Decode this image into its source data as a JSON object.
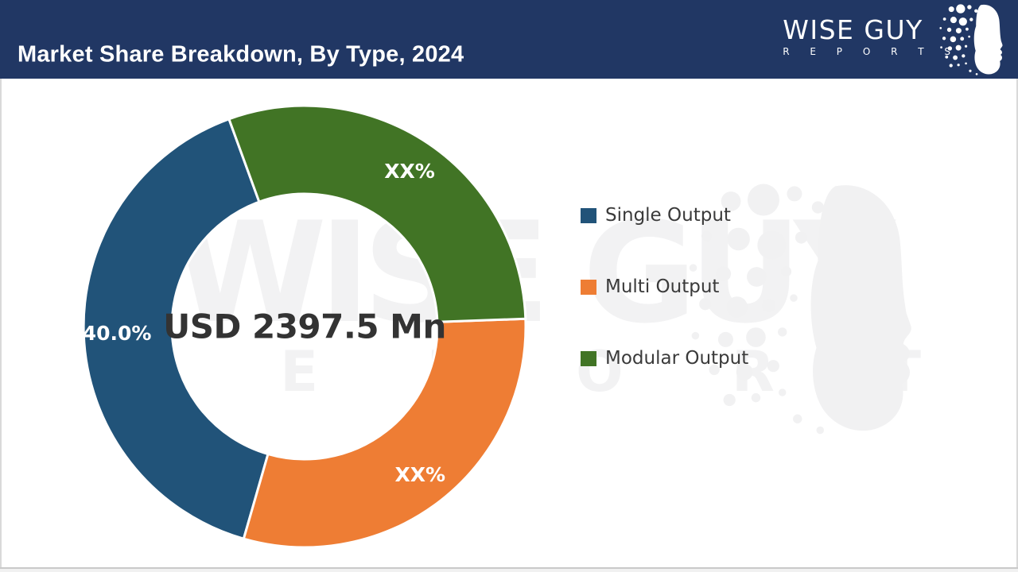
{
  "header": {
    "title": "Market Share Breakdown, By Type, 2024",
    "bg_color": "#213764",
    "logo_line1": "WISE GUY",
    "logo_line2": "R E P O R T S"
  },
  "watermark": {
    "line1": "WISE GUY",
    "line2": "R E P O R T S"
  },
  "chart_data": {
    "type": "pie",
    "subtype": "donut",
    "title": "Market Share Breakdown, By Type, 2024",
    "center_label": "USD 2397.5 Mn",
    "start_angle_deg": 110,
    "direction": "counterclockwise",
    "inner_radius_ratio": 0.6,
    "legend_position": "right",
    "segments": [
      {
        "name": "Single Output",
        "value_pct": 40.0,
        "slice_label": "40.0%",
        "color": "#215379"
      },
      {
        "name": "Multi Output",
        "value_pct": 30.0,
        "slice_label": "XX%",
        "color": "#EE7D34"
      },
      {
        "name": "Modular Output",
        "value_pct": 30.0,
        "slice_label": "XX%",
        "color": "#417425"
      }
    ]
  },
  "colors": {
    "header_bg": "#213764",
    "center_text": "#333333",
    "legend_text": "#3A3A3A",
    "wedge_edge": "#FFFFFF",
    "watermark": "#F2F2F3"
  }
}
